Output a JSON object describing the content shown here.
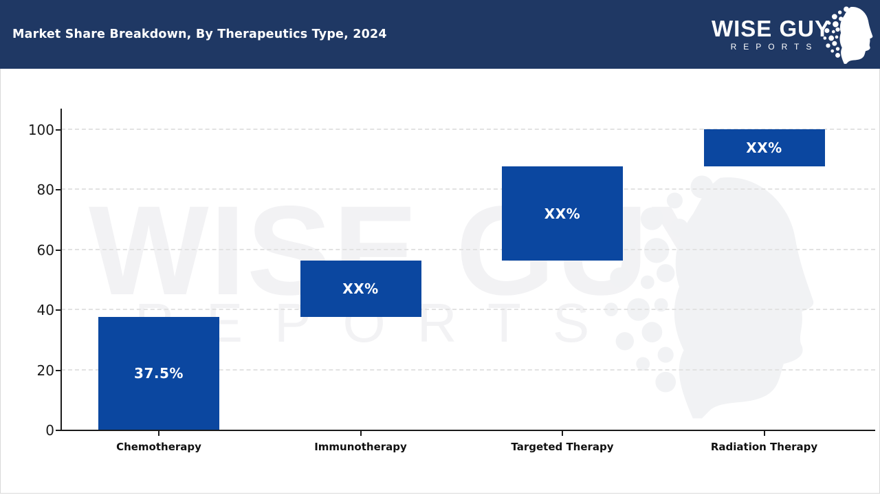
{
  "header": {
    "title": "Market Share Breakdown, By Therapeutics Type, 2024",
    "logo": {
      "line1": "WISE GUY",
      "line2": "REPORTS"
    }
  },
  "watermark": {
    "line1": "WISE GUY",
    "line2": "REPORTS"
  },
  "chart_data": {
    "type": "bar",
    "subtype": "floating-waterfall",
    "title": "Market Share Breakdown, By Therapeutics Type, 2024",
    "categories": [
      "Chemotherapy",
      "Immunotherapy",
      "Targeted Therapy",
      "Radiation Therapy"
    ],
    "segments": [
      {
        "category": "Chemotherapy",
        "start": 0,
        "end": 37.5,
        "label": "37.5%"
      },
      {
        "category": "Immunotherapy",
        "start": 37.5,
        "end": 56.25,
        "label": "XX%"
      },
      {
        "category": "Targeted Therapy",
        "start": 56.25,
        "end": 87.5,
        "label": "XX%"
      },
      {
        "category": "Radiation Therapy",
        "start": 87.5,
        "end": 100,
        "label": "XX%"
      }
    ],
    "yticks": [
      0,
      20,
      40,
      60,
      80,
      100
    ],
    "ylim": [
      0,
      107
    ],
    "xlabel": "",
    "ylabel": "",
    "grid": "horizontal-dashed",
    "legend": "none",
    "colors": {
      "bar": "#0b47a0",
      "header_bg": "#1f3864",
      "grid": "#e2e2e2",
      "axis": "#1a1a1a",
      "bar_label": "#ffffff",
      "watermark": "#f2f2f4"
    }
  }
}
